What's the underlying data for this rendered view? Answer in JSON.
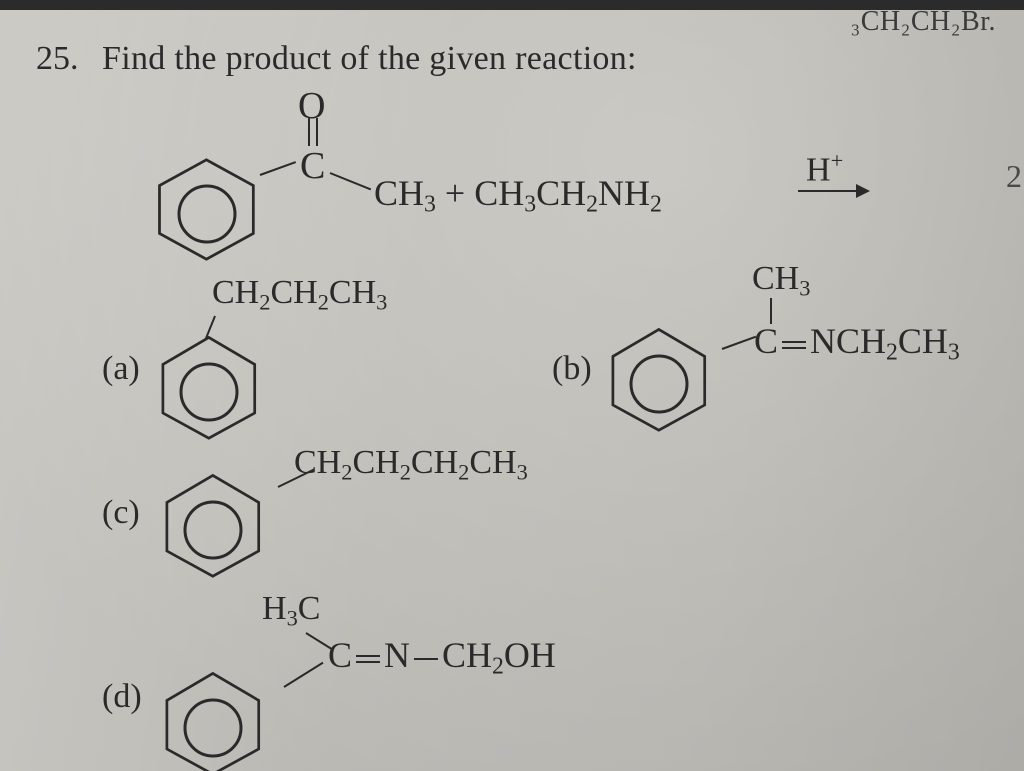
{
  "page": {
    "prev_fragment_top_right": "₃CH₂CH₂Br.",
    "right_margin_number": "2"
  },
  "question": {
    "number": "25.",
    "text": "Find the product of the given reaction:"
  },
  "reaction": {
    "carbonyl_C": "C",
    "carbonyl_O": "O",
    "tail_formula_html": "CH<sub>3</sub> + CH<sub>3</sub>CH<sub>2</sub>NH<sub>2</sub>",
    "catalyst_html": "H<sup>+</sup>"
  },
  "options": {
    "a": {
      "label": "(a)",
      "substituent_html": "CH<sub>2</sub>CH<sub>2</sub>CH<sub>3</sub>"
    },
    "b": {
      "label": "(b)",
      "top_group_html": "CH<sub>3</sub>",
      "line_html": "C<span class=\"dbldash\"></span>NCH<sub>2</sub>CH<sub>3</sub>"
    },
    "c": {
      "label": "(c)",
      "substituent_html": "CH<sub>2</sub>CH<sub>2</sub>CH<sub>2</sub>CH<sub>3</sub>"
    },
    "d": {
      "label": "(d)",
      "top_group_html": "H<sub>3</sub>C",
      "line_html": "C<span class=\"dbldash\"></span>N<span class=\"dash\"></span>CH<sub>2</sub>OH"
    }
  },
  "style": {
    "text_color": "#2a2a2a",
    "background_gradient": [
      "#e6e4de",
      "#c5c3bd"
    ],
    "ring_stroke": "#2a2a2a",
    "ring_stroke_width": 3
  }
}
